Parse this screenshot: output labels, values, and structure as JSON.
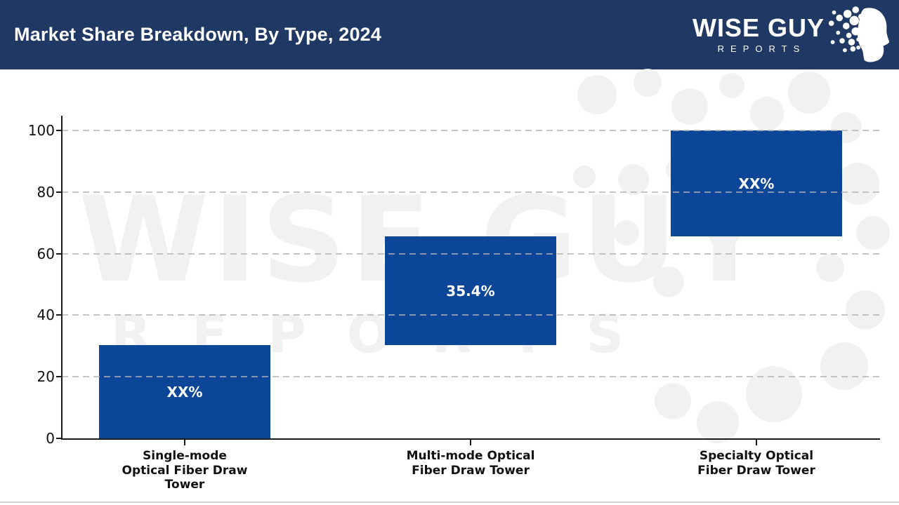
{
  "header": {
    "title": "Market Share Breakdown, By Type, 2024",
    "logo": {
      "line1": "WISE GUY",
      "line2": "REPORTS"
    },
    "bg_color": "#203864"
  },
  "watermark": {
    "line1": "WISE GUY",
    "line2": "REPORTS",
    "color": "#f1f1f1"
  },
  "chart_data": {
    "type": "bar",
    "subtype": "floating-segment-breakdown",
    "title": "Market Share Breakdown, By Type, 2024",
    "categories": [
      "Single-mode\nOptical Fiber Draw\nTower",
      "Multi-mode Optical\nFiber Draw Tower",
      "Specialty Optical\nFiber Draw Tower"
    ],
    "segments": [
      {
        "start": 0,
        "end": 30.2,
        "value": 30.2,
        "label": "XX%"
      },
      {
        "start": 30.2,
        "end": 65.6,
        "value": 35.4,
        "label": "35.4%"
      },
      {
        "start": 65.6,
        "end": 100,
        "value": 34.4,
        "label": "XX%"
      }
    ],
    "xlabel": "",
    "ylabel": "",
    "ylim": [
      0,
      100
    ],
    "yticks": [
      0,
      20,
      40,
      60,
      80,
      100
    ],
    "grid": "horizontal-dashed",
    "legend": "none",
    "bar_color": "#0b4699",
    "bar_label_color": "#ffffff"
  }
}
